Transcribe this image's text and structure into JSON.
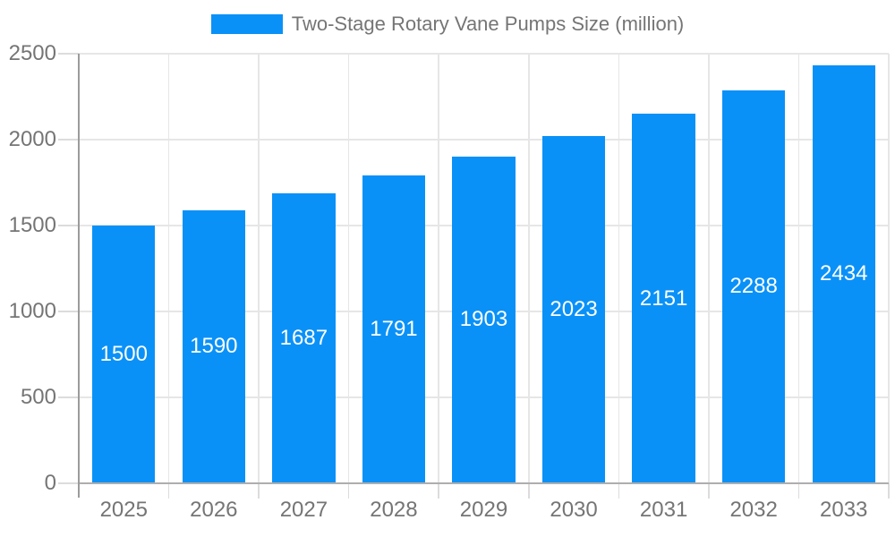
{
  "page": {
    "background_color": "#ffffff"
  },
  "legend": {
    "label": "Two-Stage Rotary Vane Pumps Size (million)",
    "swatch_color": "#0a91f8",
    "text_color": "#757575"
  },
  "chart_data": {
    "type": "bar",
    "title": "Two-Stage Rotary Vane Pumps Size (million)",
    "series_name": "Two-Stage Rotary Vane Pumps Size (million)",
    "categories": [
      "2025",
      "2026",
      "2027",
      "2028",
      "2029",
      "2030",
      "2031",
      "2032",
      "2033"
    ],
    "values": [
      1500,
      1590,
      1687,
      1791,
      1903,
      2023,
      2151,
      2288,
      2434
    ],
    "xlabel": "",
    "ylabel": "",
    "ylim": [
      0,
      2500
    ],
    "yticks": [
      0,
      500,
      1000,
      1500,
      2000,
      2500
    ],
    "grid": true,
    "legend_position": "top-center",
    "bar_color": "#0a91f8",
    "value_label_color": "#ffffff",
    "axis_text_color": "#757575",
    "gridline_color": "#e6e6e6",
    "value_labels_inside_bars": true
  }
}
